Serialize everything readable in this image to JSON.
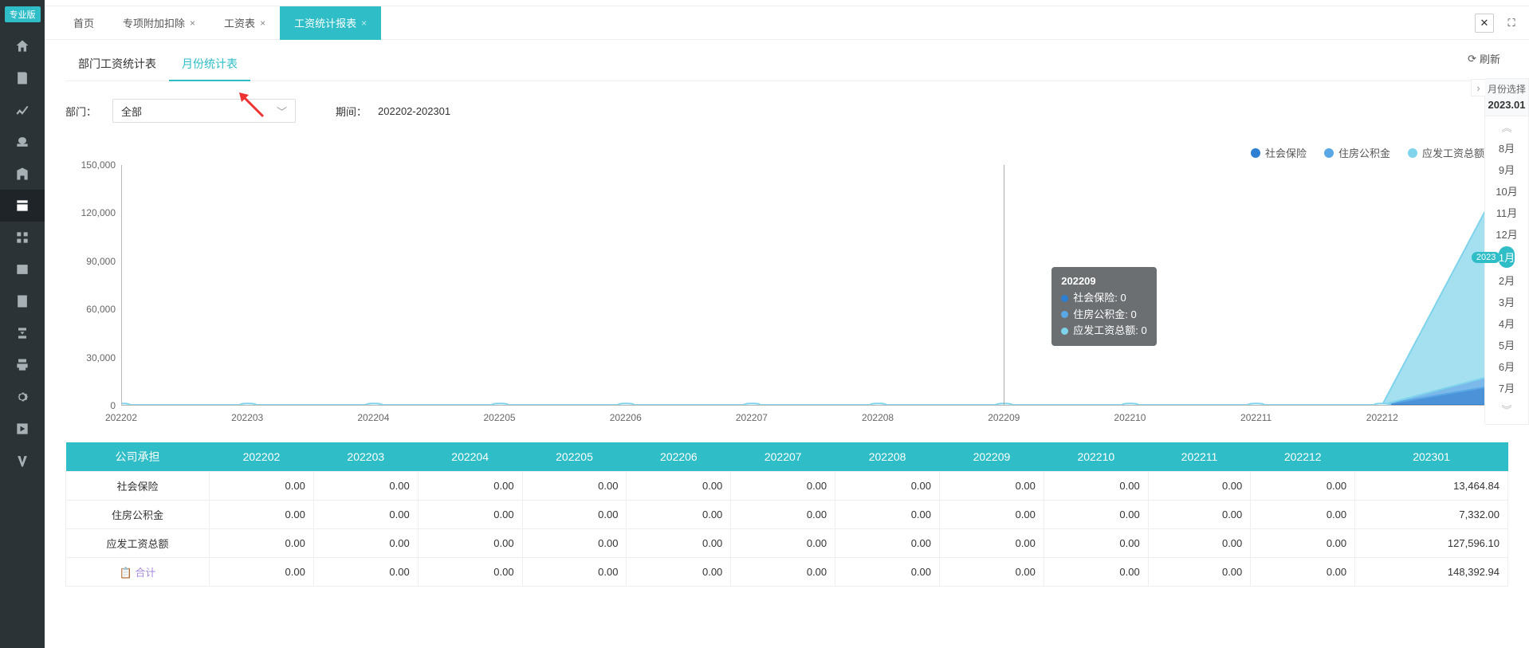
{
  "sidebar": {
    "badge": "专业版"
  },
  "tabs": {
    "items": [
      {
        "label": "首页",
        "closable": false
      },
      {
        "label": "专项附加扣除",
        "closable": true
      },
      {
        "label": "工资表",
        "closable": true
      },
      {
        "label": "工资统计报表",
        "closable": true,
        "active": true
      }
    ]
  },
  "subtabs": {
    "items": [
      {
        "label": "部门工资统计表"
      },
      {
        "label": "月份统计表",
        "active": true
      }
    ]
  },
  "toolbar": {
    "refresh": "刷新"
  },
  "filters": {
    "dept_label": "部门：",
    "dept_value": "全部",
    "period_label": "期间：",
    "period_value": "202202-202301"
  },
  "chart": {
    "type": "area",
    "ylim": [
      0,
      150000
    ],
    "yticks": [
      0,
      30000,
      60000,
      90000,
      120000,
      150000
    ],
    "ytick_labels": [
      "0",
      "30,000",
      "60,000",
      "90,000",
      "120,000",
      "150,000"
    ],
    "categories": [
      "202202",
      "202203",
      "202204",
      "202205",
      "202206",
      "202207",
      "202208",
      "202209",
      "202210",
      "202211",
      "202212",
      "202301"
    ],
    "series": [
      {
        "name": "社会保险",
        "color": "#2d7fd1",
        "fill": "#2d7fd1",
        "fill_opacity": 0.85,
        "values": [
          0,
          0,
          0,
          0,
          0,
          0,
          0,
          0,
          0,
          0,
          0,
          13464.84
        ]
      },
      {
        "name": "住房公积金",
        "color": "#5aa7e6",
        "fill": "#5aa7e6",
        "fill_opacity": 0.8,
        "values": [
          0,
          0,
          0,
          0,
          0,
          0,
          0,
          0,
          0,
          0,
          0,
          7332.0
        ]
      },
      {
        "name": "应发工资总额",
        "color": "#7fd3eb",
        "fill": "#7fd3eb",
        "fill_opacity": 0.7,
        "values": [
          0,
          0,
          0,
          0,
          0,
          0,
          0,
          0,
          0,
          0,
          0,
          127596.1
        ]
      }
    ],
    "stacked": true,
    "tooltip": {
      "category": "202209",
      "hover_index": 7,
      "rows": [
        {
          "label": "社会保险",
          "value": "0",
          "color": "#2d7fd1"
        },
        {
          "label": "住房公积金",
          "value": "0",
          "color": "#5aa7e6"
        },
        {
          "label": "应发工资总额",
          "value": "0",
          "color": "#7fd3eb"
        }
      ]
    },
    "background_color": "#ffffff",
    "axis_color": "#bbbbbb",
    "label_color": "#666666",
    "label_fontsize": 12
  },
  "table": {
    "header_first": "公司承担",
    "columns": [
      "202202",
      "202203",
      "202204",
      "202205",
      "202206",
      "202207",
      "202208",
      "202209",
      "202210",
      "202211",
      "202212",
      "202301"
    ],
    "rows": [
      {
        "name": "社会保险",
        "cells": [
          "0.00",
          "0.00",
          "0.00",
          "0.00",
          "0.00",
          "0.00",
          "0.00",
          "0.00",
          "0.00",
          "0.00",
          "0.00",
          "13,464.84"
        ]
      },
      {
        "name": "住房公积金",
        "cells": [
          "0.00",
          "0.00",
          "0.00",
          "0.00",
          "0.00",
          "0.00",
          "0.00",
          "0.00",
          "0.00",
          "0.00",
          "0.00",
          "7,332.00"
        ]
      },
      {
        "name": "应发工资总额",
        "cells": [
          "0.00",
          "0.00",
          "0.00",
          "0.00",
          "0.00",
          "0.00",
          "0.00",
          "0.00",
          "0.00",
          "0.00",
          "0.00",
          "127,596.10"
        ]
      }
    ],
    "sum_row": {
      "name": "合计",
      "cells": [
        "0.00",
        "0.00",
        "0.00",
        "0.00",
        "0.00",
        "0.00",
        "0.00",
        "0.00",
        "0.00",
        "0.00",
        "0.00",
        "148,392.94"
      ]
    },
    "header_bg": "#2fbdc7",
    "header_color": "#ffffff",
    "border_color": "#eeeeee"
  },
  "monthPanel": {
    "title": "月份选择",
    "year": "2023.01",
    "year_pill": "2023",
    "items": [
      "8月",
      "9月",
      "10月",
      "11月",
      "12月",
      "1月",
      "2月",
      "3月",
      "4月",
      "5月",
      "6月",
      "7月"
    ],
    "active_index": 5
  },
  "colors": {
    "brand": "#2fbdc7"
  }
}
